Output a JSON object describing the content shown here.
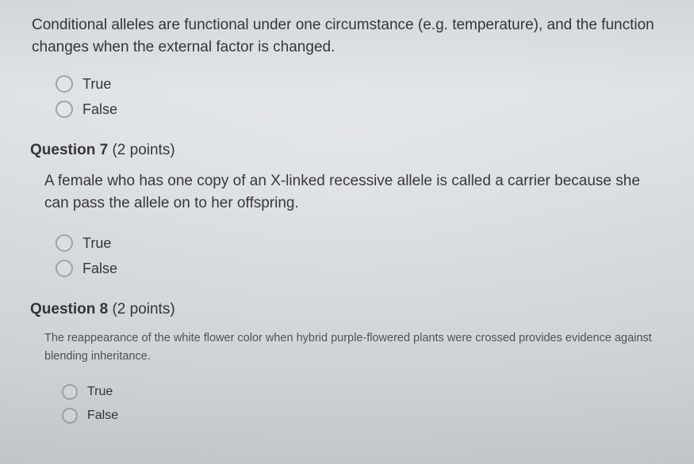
{
  "q6": {
    "prompt": "Conditional alleles are functional under one circumstance (e.g. temperature), and the function changes when the external factor is changed.",
    "options": {
      "true": "True",
      "false": "False"
    }
  },
  "q7": {
    "heading_number": "Question 7",
    "heading_points": " (2 points)",
    "prompt": "A female who has one copy of an X-linked recessive allele is called a carrier because she can pass the allele on to her offspring.",
    "options": {
      "true": "True",
      "false": "False"
    }
  },
  "q8": {
    "heading_number": "Question 8",
    "heading_points": " (2 points)",
    "prompt": "The reappearance of the white flower color when hybrid purple-flowered plants were crossed provides evidence against blending inheritance.",
    "options": {
      "true": "True",
      "false": "False"
    }
  }
}
